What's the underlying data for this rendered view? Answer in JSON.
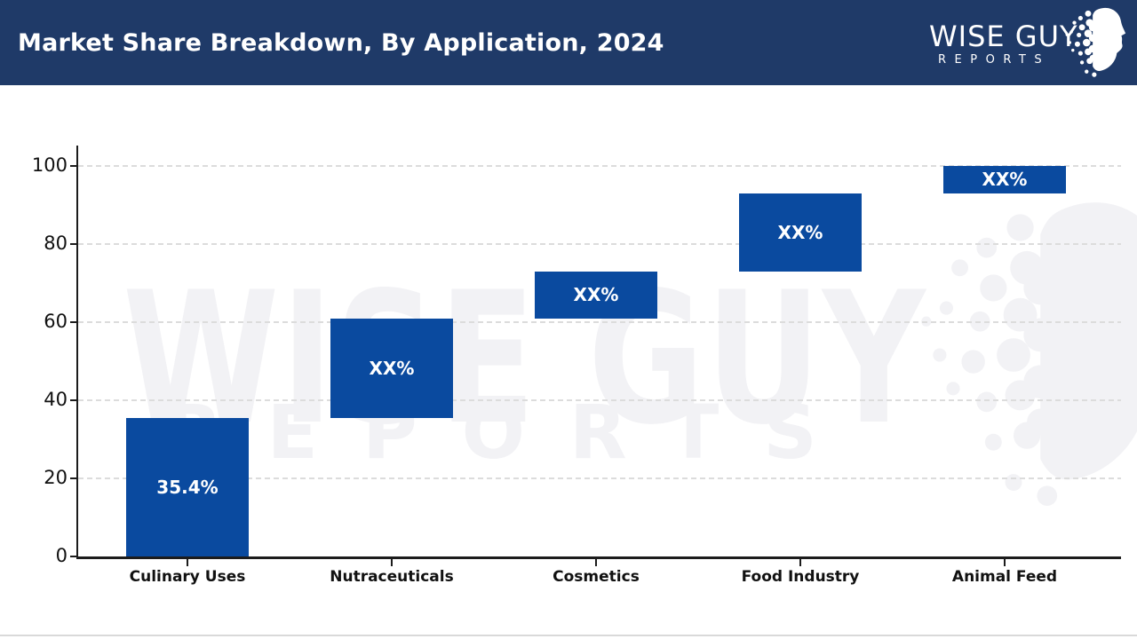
{
  "header": {
    "title": "Market Share Breakdown, By Application, 2024",
    "bg_color": "#1f3a68",
    "logo": {
      "line1": "WISE GUY",
      "line2": "REPORTS"
    }
  },
  "watermark": {
    "line1": "WISE GUY",
    "line2": "REPORTS"
  },
  "chart_data": {
    "type": "bar",
    "subtype": "waterfall",
    "title": "Market Share Breakdown, By Application, 2024",
    "categories": [
      "Culinary Uses",
      "Nutraceuticals",
      "Cosmetics",
      "Food Industry",
      "Animal Feed"
    ],
    "segments": [
      {
        "category": "Culinary Uses",
        "start": 0,
        "end": 35.4,
        "label": "35.4%"
      },
      {
        "category": "Nutraceuticals",
        "start": 35.4,
        "end": 61,
        "label": "XX%"
      },
      {
        "category": "Cosmetics",
        "start": 61,
        "end": 73,
        "label": "XX%"
      },
      {
        "category": "Food Industry",
        "start": 73,
        "end": 93,
        "label": "XX%"
      },
      {
        "category": "Animal Feed",
        "start": 93,
        "end": 100,
        "label": "XX%"
      }
    ],
    "yticks": [
      0,
      20,
      40,
      60,
      80,
      100
    ],
    "ylim": [
      0,
      100
    ],
    "xlabel": "",
    "ylabel": "",
    "grid": "horizontal dashed",
    "legend": "none",
    "bar_color": "#0a4a9f",
    "bar_label_color": "#ffffff",
    "axis_color": "#1c1c1c"
  }
}
